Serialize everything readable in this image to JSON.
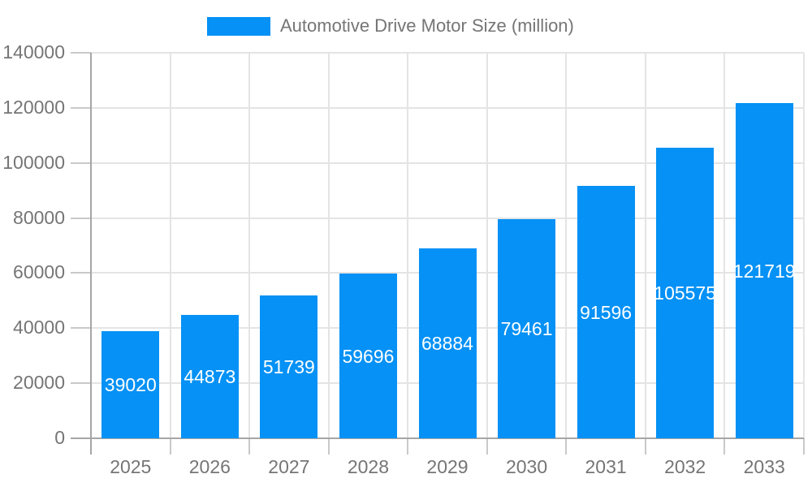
{
  "chart_data": {
    "type": "bar",
    "title": "Automotive Drive Motor Size (million)",
    "legend": {
      "position": "top",
      "entries": [
        "Automotive Drive Motor Size (million)"
      ]
    },
    "categories": [
      "2025",
      "2026",
      "2027",
      "2028",
      "2029",
      "2030",
      "2031",
      "2032",
      "2033"
    ],
    "series": [
      {
        "name": "Automotive Drive Motor Size (million)",
        "values": [
          39020,
          44873,
          51739,
          59696,
          68884,
          79461,
          91596,
          105575,
          121719
        ]
      }
    ],
    "bar_value_labels": [
      "39020",
      "44873",
      "51739",
      "59696",
      "68884",
      "79461",
      "91596",
      "105575",
      "121719"
    ],
    "xlabel": "",
    "ylabel": "",
    "ylim": [
      0,
      140000
    ],
    "ytick_step": 20000,
    "ytick_labels": [
      "0",
      "20000",
      "40000",
      "60000",
      "80000",
      "100000",
      "120000",
      "140000"
    ],
    "grid": true,
    "colors": {
      "bar": "#0591F5",
      "bar_value_text": "#ffffff",
      "axis_text": "#757575",
      "legend_text": "#757575",
      "gridline": "#e4e4e4",
      "axis_line": "#a6a6a6",
      "tick": "#c9c9c9",
      "background": "#ffffff"
    }
  }
}
